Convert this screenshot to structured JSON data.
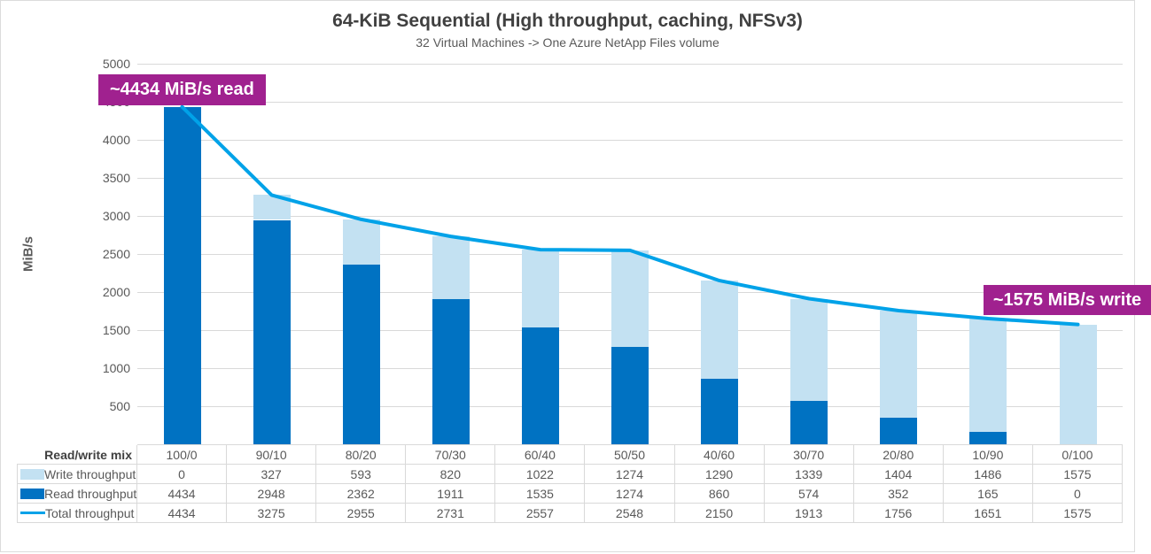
{
  "chart": {
    "title": "64-KiB Sequential (High throughput, caching, NFSv3)",
    "subtitle": "32 Virtual Machines -> One Azure NetApp Files volume",
    "y_axis_title": "MiB/s"
  },
  "annotations": {
    "read_peak": "~4434 MiB/s read",
    "write_peak": "~1575 MiB/s write"
  },
  "colors": {
    "read_bar": "#0072C2",
    "write_bar": "#C3E1F2",
    "total_line": "#00A2E8",
    "annotation_bg": "#A0218F",
    "gridline": "#D9D9D9",
    "text": "#595959"
  },
  "chart_data": {
    "type": "bar",
    "subtype": "stacked-bar-with-line-combo",
    "title": "64-KiB Sequential (High throughput, caching, NFSv3)",
    "subtitle": "32 Virtual Machines -> One Azure NetApp Files volume",
    "xlabel": "Read/write mix",
    "ylabel": "MiB/s",
    "ylim": [
      0,
      5000
    ],
    "yticks": [
      500,
      1000,
      1500,
      2000,
      2500,
      3000,
      3500,
      4000,
      4500,
      5000
    ],
    "grid": true,
    "legend_position": "data-table",
    "table_header_label": "Read/write mix",
    "categories": [
      "100/0",
      "90/10",
      "80/20",
      "70/30",
      "60/40",
      "50/50",
      "40/60",
      "30/70",
      "20/80",
      "10/90",
      "0/100"
    ],
    "series": [
      {
        "name": "Write throughput",
        "role": "bar-top",
        "color": "#C3E1F2",
        "values": [
          0,
          327,
          593,
          820,
          1022,
          1274,
          1290,
          1339,
          1404,
          1486,
          1575
        ]
      },
      {
        "name": "Read throughput",
        "role": "bar-bottom",
        "color": "#0072C2",
        "values": [
          4434,
          2948,
          2362,
          1911,
          1535,
          1274,
          860,
          574,
          352,
          165,
          0
        ]
      },
      {
        "name": "Total throughput",
        "role": "line",
        "color": "#00A2E8",
        "values": [
          4434,
          3275,
          2955,
          2731,
          2557,
          2548,
          2150,
          1913,
          1756,
          1651,
          1575
        ]
      }
    ]
  }
}
